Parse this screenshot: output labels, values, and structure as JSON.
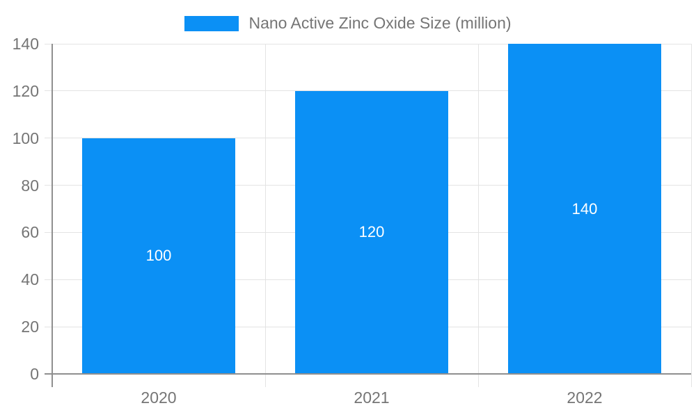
{
  "chart_data": {
    "type": "bar",
    "categories": [
      "2020",
      "2021",
      "2022"
    ],
    "values": [
      100,
      120,
      140
    ],
    "series_name": "Nano Active Zinc Oxide Size (million)",
    "legend": {
      "label": "Nano Active Zinc Oxide Size (million)",
      "position": "top"
    },
    "xlabel": "",
    "ylabel": "",
    "ylim": [
      0,
      140
    ],
    "yticks": [
      0,
      20,
      40,
      60,
      80,
      100,
      120,
      140
    ],
    "grid": true,
    "data_labels": [
      100,
      120,
      140
    ],
    "colors": {
      "bar": "#0b90f5",
      "grid": "#e3e3e3",
      "axis": "#8f8f8f",
      "tick_text": "#757575",
      "legend_text": "#757575",
      "data_label_text": "#ffffff",
      "background": "#ffffff"
    }
  }
}
